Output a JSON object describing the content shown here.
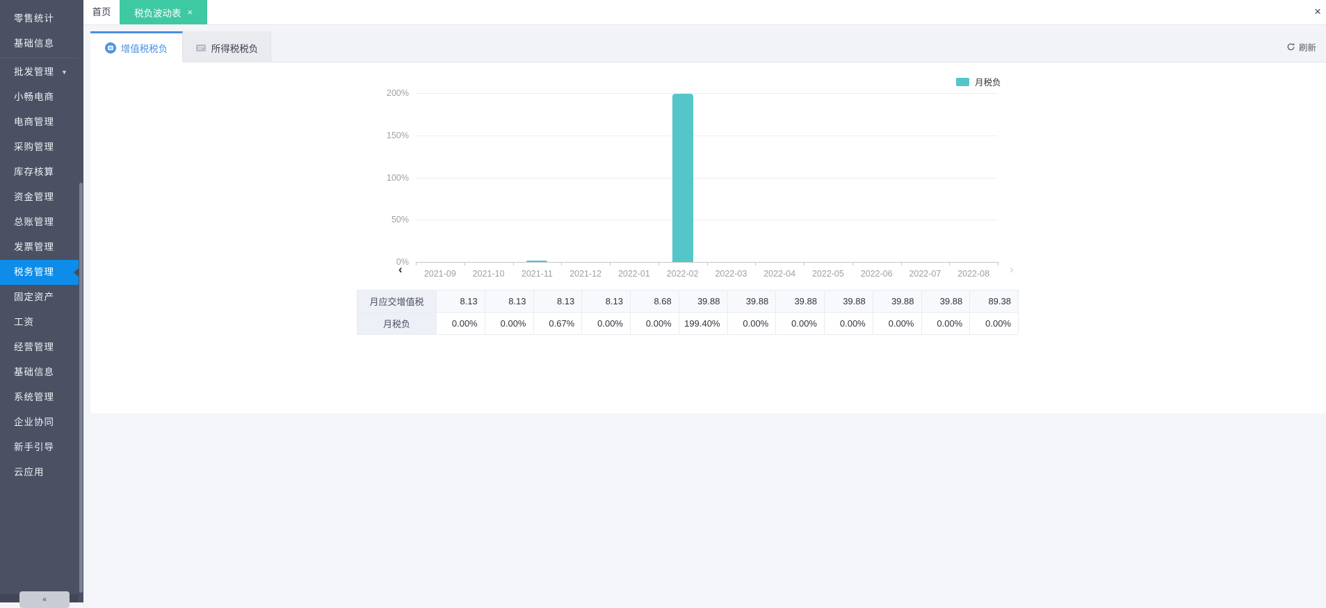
{
  "colors": {
    "page_bg": "#f4f5f9",
    "sidebar_bg": "#4b5063",
    "sidebar_active": "#0d8ce9",
    "tab_green": "#3fc9a2",
    "accent_blue": "#4a90e2",
    "bar_teal": "#54c6ca"
  },
  "window": {
    "tabs": [
      {
        "key": "home",
        "label": "首页",
        "active": false
      },
      {
        "key": "tax-fluctuation",
        "label": "税负波动表",
        "active": true,
        "close_label": "×"
      }
    ],
    "close_label": "×"
  },
  "sidebar": {
    "divider_after": 1,
    "items": [
      {
        "key": "retail-statistics",
        "label": "零售统计"
      },
      {
        "key": "basic-information",
        "label": "基础信息"
      },
      {
        "key": "wholesale-management",
        "label": "批发管理",
        "caret": true
      },
      {
        "key": "xiaochang-ecommerce",
        "label": "小畅电商"
      },
      {
        "key": "ecommerce-management",
        "label": "电商管理"
      },
      {
        "key": "purchase-management",
        "label": "采购管理"
      },
      {
        "key": "inventory-accounting",
        "label": "库存核算"
      },
      {
        "key": "capital-management",
        "label": "资金管理"
      },
      {
        "key": "general-ledger",
        "label": "总账管理"
      },
      {
        "key": "invoice-management",
        "label": "发票管理"
      },
      {
        "key": "tax-management",
        "label": "税务管理",
        "active": true
      },
      {
        "key": "fixed-assets",
        "label": "固定资产"
      },
      {
        "key": "payroll",
        "label": "工资"
      },
      {
        "key": "business-management",
        "label": "经营管理"
      },
      {
        "key": "basic-information-2",
        "label": "基础信息"
      },
      {
        "key": "system-management",
        "label": "系统管理"
      },
      {
        "key": "enterprise-collaboration",
        "label": "企业协同"
      },
      {
        "key": "beginner-guide",
        "label": "新手引导"
      },
      {
        "key": "cloud-apps",
        "label": "云应用"
      }
    ],
    "collapse_label": "«"
  },
  "toolbar": {
    "tabs": [
      {
        "key": "vat-burden",
        "label": "增值税税负",
        "active": true
      },
      {
        "key": "income-tax-burden",
        "label": "所得税税负",
        "active": false
      }
    ],
    "refresh_label": "刷新"
  },
  "chart_data": {
    "type": "bar",
    "title": "",
    "legend_label": "月税负",
    "legend_position": "top-right",
    "grid": true,
    "categories": [
      "2021-09",
      "2021-10",
      "2021-11",
      "2021-12",
      "2022-01",
      "2022-02",
      "2022-03",
      "2022-04",
      "2022-05",
      "2022-06",
      "2022-07",
      "2022-08"
    ],
    "series": [
      {
        "name": "月税负",
        "values": [
          0.0,
          0.0,
          0.67,
          0.0,
          0.0,
          199.4,
          0.0,
          0.0,
          0.0,
          0.0,
          0.0,
          0.0
        ]
      }
    ],
    "y_ticks": [
      "0%",
      "50%",
      "100%",
      "150%",
      "200%"
    ],
    "ylim": [
      0,
      200
    ],
    "xlabel": "",
    "ylabel": "",
    "pager": {
      "prev": "‹",
      "next": "›"
    }
  },
  "table": {
    "rows": [
      {
        "header": "月应交增值税",
        "values": [
          "8.13",
          "8.13",
          "8.13",
          "8.13",
          "8.68",
          "39.88",
          "39.88",
          "39.88",
          "39.88",
          "39.88",
          "39.88",
          "89.38"
        ]
      },
      {
        "header": "月税负",
        "values": [
          "0.00%",
          "0.00%",
          "0.67%",
          "0.00%",
          "0.00%",
          "199.40%",
          "0.00%",
          "0.00%",
          "0.00%",
          "0.00%",
          "0.00%",
          "0.00%"
        ]
      }
    ]
  }
}
